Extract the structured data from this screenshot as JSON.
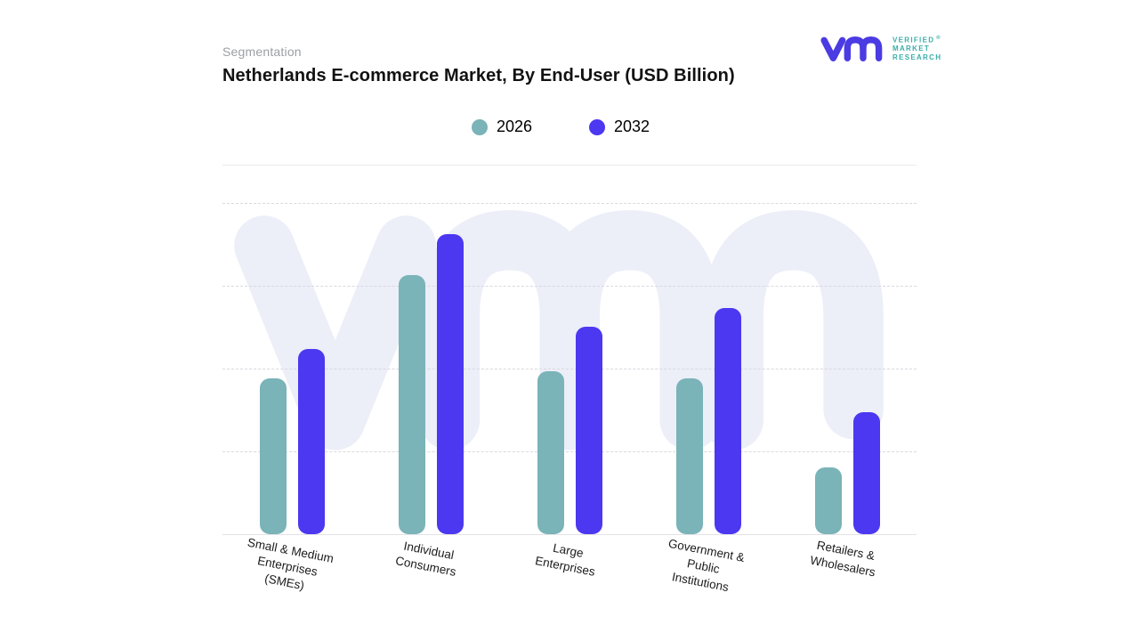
{
  "header": {
    "eyebrow": "Segmentation",
    "title": "Netherlands E-commerce Market, By End-User (USD Billion)"
  },
  "brand": {
    "lines": [
      "VERIFIED",
      "MARKET",
      "RESEARCH"
    ],
    "registered_mark": "®",
    "logo_color": "#4b3be2",
    "text_color": "#3aaea9"
  },
  "chart_data": {
    "type": "bar",
    "title": "Netherlands E-commerce Market, By End-User (USD Billion)",
    "categories": [
      "Small & Medium Enterprises (SMEs)",
      "Individual Consumers",
      "Large Enterprises",
      "Government & Public Institutions",
      "Retailers & Wholesalers"
    ],
    "category_label_lines": [
      [
        "Small & Medium",
        "Enterprises",
        "(SMEs)"
      ],
      [
        "Individual",
        "Consumers"
      ],
      [
        "Large",
        "Enterprises"
      ],
      [
        "Government &",
        "Public",
        "Institutions"
      ],
      [
        "Retailers &",
        "Wholesalers"
      ]
    ],
    "series": [
      {
        "name": "2026",
        "color": "#7ab3b8",
        "values_pct_of_plot_height": [
          42,
          70,
          44,
          42,
          18
        ]
      },
      {
        "name": "2032",
        "color": "#4b38f0",
        "values_pct_of_plot_height": [
          50,
          81,
          56,
          61,
          33
        ]
      }
    ],
    "xlabel": "",
    "ylabel": "",
    "y_axis": {
      "tick_labels_visible": false,
      "gridlines": "4 horizontal dashed lines, evenly spaced, no numeric labels"
    },
    "legend_position": "top-center",
    "note": "No numeric y-axis labels shown in source; values are estimated bar heights as percent of full plot height (baseline to top line).",
    "colors": {
      "series_2026": "#7ab3b8",
      "series_2032": "#4b38f0",
      "watermark": "#eceef8",
      "gridline": "#d9d9e0",
      "axis_line": "#e2e2e8"
    }
  }
}
